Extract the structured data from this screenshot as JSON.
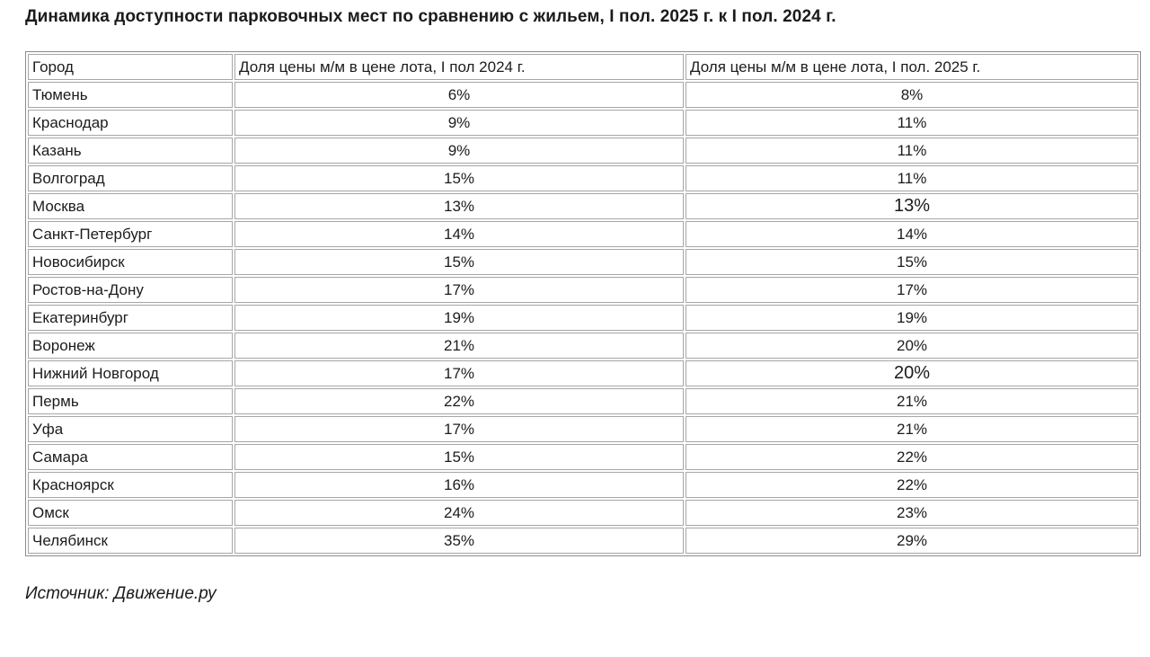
{
  "page": {
    "title": "Динамика доступности парковочных мест по сравнению с жильем, I пол. 2025 г. к I пол. 2024 г.",
    "source_note": "Источник: Движение.ру"
  },
  "chart_data": {
    "type": "table",
    "title": "Динамика доступности парковочных мест по сравнению с жильем, I пол. 2025 г. к I пол. 2024 г.",
    "columns": [
      "Город",
      "Доля цены м/м в цене лота, I пол 2024 г.",
      "Доля цены м/м в цене лота, I пол. 2025 г."
    ],
    "rows": [
      {
        "city": "Тюмень",
        "share_2024": "6%",
        "share_2025": "8%",
        "emphasis_2025": false
      },
      {
        "city": "Краснодар",
        "share_2024": "9%",
        "share_2025": "11%",
        "emphasis_2025": false
      },
      {
        "city": "Казань",
        "share_2024": "9%",
        "share_2025": "11%",
        "emphasis_2025": false
      },
      {
        "city": "Волгоград",
        "share_2024": "15%",
        "share_2025": "11%",
        "emphasis_2025": false
      },
      {
        "city": "Москва",
        "share_2024": "13%",
        "share_2025": "13%",
        "emphasis_2025": true
      },
      {
        "city": "Санкт-Петербург",
        "share_2024": "14%",
        "share_2025": "14%",
        "emphasis_2025": false
      },
      {
        "city": "Новосибирск",
        "share_2024": "15%",
        "share_2025": "15%",
        "emphasis_2025": false
      },
      {
        "city": "Ростов-на-Дону",
        "share_2024": "17%",
        "share_2025": "17%",
        "emphasis_2025": false
      },
      {
        "city": "Екатеринбург",
        "share_2024": "19%",
        "share_2025": "19%",
        "emphasis_2025": false
      },
      {
        "city": "Воронеж",
        "share_2024": "21%",
        "share_2025": "20%",
        "emphasis_2025": false
      },
      {
        "city": "Нижний Новгород",
        "share_2024": "17%",
        "share_2025": "20%",
        "emphasis_2025": true
      },
      {
        "city": "Пермь",
        "share_2024": "22%",
        "share_2025": "21%",
        "emphasis_2025": false
      },
      {
        "city": "Уфа",
        "share_2024": "17%",
        "share_2025": "21%",
        "emphasis_2025": false
      },
      {
        "city": "Самара",
        "share_2024": "15%",
        "share_2025": "22%",
        "emphasis_2025": false
      },
      {
        "city": "Красноярск",
        "share_2024": "16%",
        "share_2025": "22%",
        "emphasis_2025": false
      },
      {
        "city": "Омск",
        "share_2024": "24%",
        "share_2025": "23%",
        "emphasis_2025": false
      },
      {
        "city": "Челябинск",
        "share_2024": "35%",
        "share_2025": "29%",
        "emphasis_2025": false
      }
    ],
    "source": "Источник: Движение.ру",
    "layout": {
      "grid": "all-borders",
      "header_position": "top",
      "value_alignment": "center",
      "city_alignment": "left"
    }
  }
}
